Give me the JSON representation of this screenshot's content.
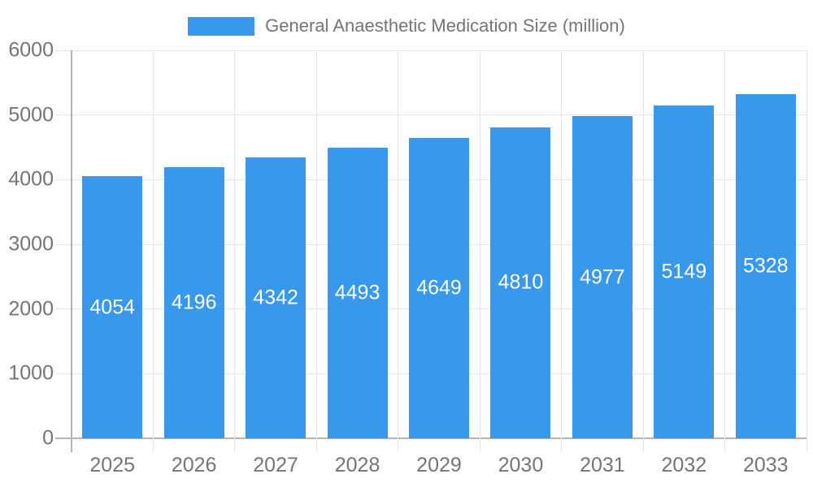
{
  "legend": {
    "label": "General Anaesthetic Medication Size (million)"
  },
  "colors": {
    "bar": "#3899ec",
    "bar_label_text": "#ffffff",
    "axis_text": "#757575",
    "grid_line": "#e6e6e6",
    "axis_line": "#b3b3b3",
    "background": "#ffffff"
  },
  "chart_data": {
    "type": "bar",
    "title": "",
    "categories": [
      "2025",
      "2026",
      "2027",
      "2028",
      "2029",
      "2030",
      "2031",
      "2032",
      "2033"
    ],
    "series": [
      {
        "name": "General Anaesthetic Medication Size (million)",
        "values": [
          4054,
          4196,
          4342,
          4493,
          4649,
          4810,
          4977,
          5149,
          5328
        ]
      }
    ],
    "xlabel": "",
    "ylabel": "",
    "ylim": [
      0,
      6000
    ],
    "yticks": [
      0,
      1000,
      2000,
      3000,
      4000,
      5000,
      6000
    ],
    "grid": true,
    "legend_position": "top-center",
    "value_labels_position": "inside-center"
  }
}
